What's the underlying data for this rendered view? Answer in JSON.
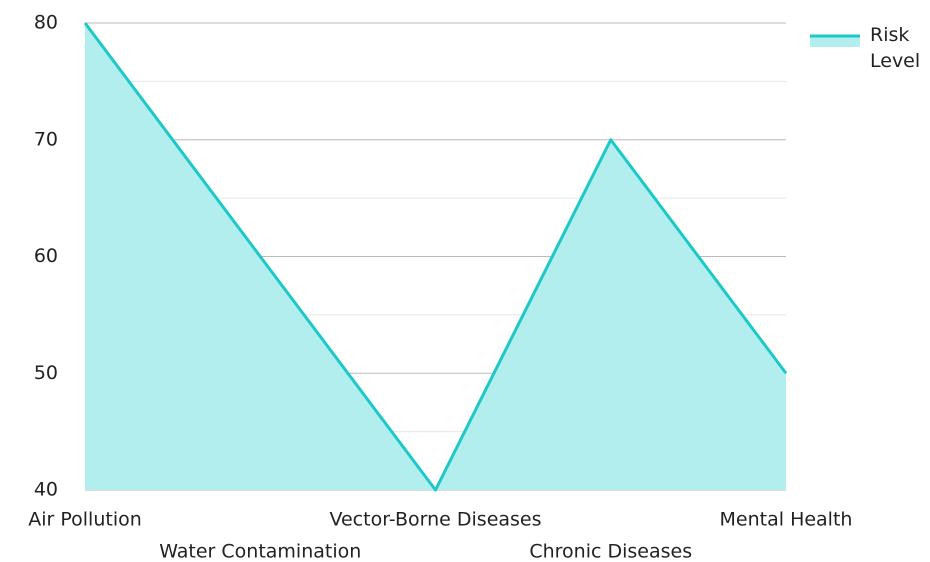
{
  "chart_data": {
    "type": "area",
    "categories": [
      "Air Pollution",
      "Water Contamination",
      "Vector-Borne Diseases",
      "Chronic Diseases",
      "Mental Health"
    ],
    "series": [
      {
        "name": "Risk Level",
        "color": "#1cc8c8",
        "fill": "#b3eeee",
        "values": [
          80,
          60,
          40,
          70,
          50
        ]
      }
    ],
    "ylim": [
      40,
      80
    ],
    "yticks": [
      40,
      50,
      60,
      70,
      80
    ],
    "minor_yticks": [
      45,
      55,
      65,
      75
    ],
    "grid": true,
    "legend": "top-right"
  }
}
